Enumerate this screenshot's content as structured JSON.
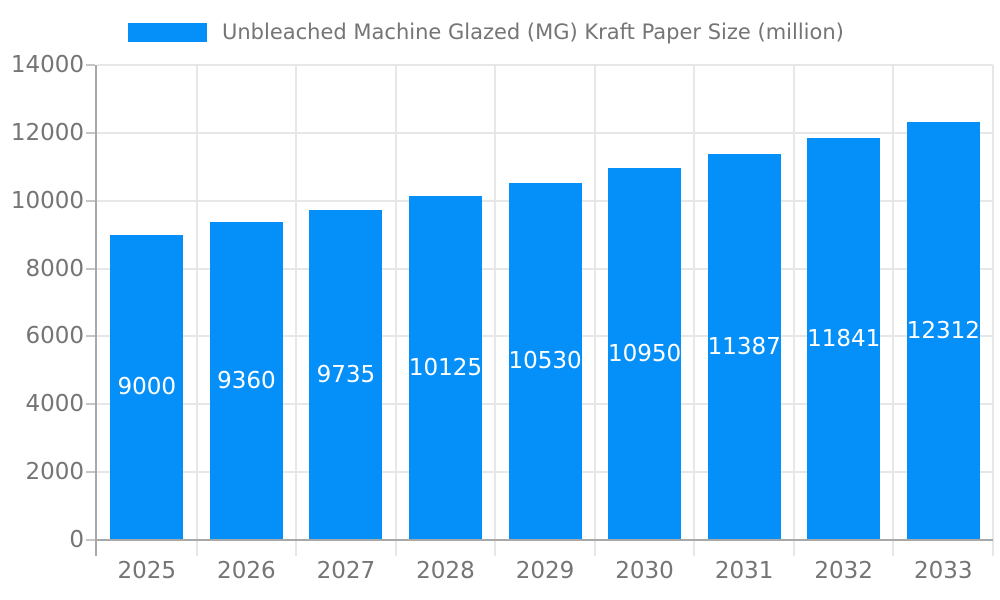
{
  "legend": {
    "label": "Unbleached Machine Glazed (MG) Kraft Paper Size (million)"
  },
  "chart_data": {
    "type": "bar",
    "title": "Unbleached Machine Glazed (MG) Kraft Paper Size (million)",
    "categories": [
      "2025",
      "2026",
      "2027",
      "2028",
      "2029",
      "2030",
      "2031",
      "2032",
      "2033"
    ],
    "values": [
      9000,
      9360,
      9735,
      10125,
      10530,
      10950,
      11387,
      11841,
      12312
    ],
    "bar_labels": [
      "9000",
      "9360",
      "9735",
      "10125",
      "10530",
      "10950",
      "11387",
      "11841",
      "12312"
    ],
    "xlabel": "",
    "ylabel": "",
    "ylim": [
      0,
      14000
    ],
    "y_ticks": [
      0,
      2000,
      4000,
      6000,
      8000,
      10000,
      12000,
      14000
    ],
    "grid": true,
    "legend_position": "top",
    "value_label_position": "center",
    "colors": {
      "bar": "#0590f9",
      "grid": "#e7e7e7",
      "axis": "#a8a8a8",
      "tick": "#c6c6c6",
      "text": "#757575",
      "bar_label": "#ffffff"
    }
  }
}
